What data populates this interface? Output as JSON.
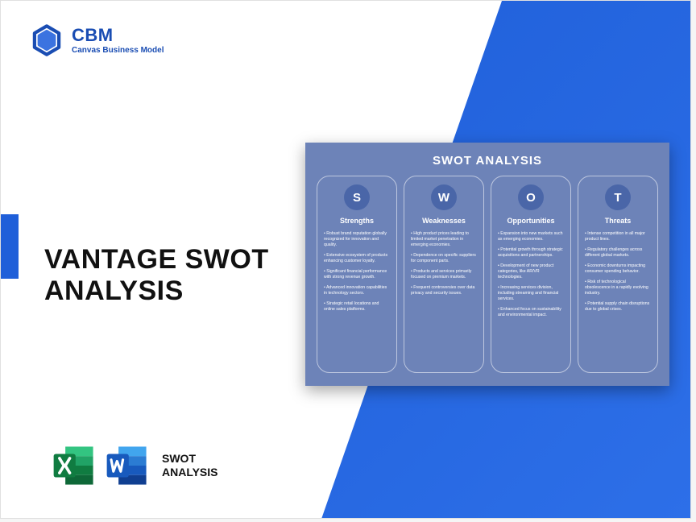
{
  "brand": {
    "title": "CBM",
    "subtitle": "Canvas Business Model",
    "color": "#1a4db3"
  },
  "main_title_line1": "VANTAGE SWOT",
  "main_title_line2": "ANALYSIS",
  "formats": {
    "label_line1": "SWOT",
    "label_line2": "ANALYSIS",
    "excel_colors": {
      "dark": "#107c41",
      "mid": "#21a366",
      "light": "#33c481"
    },
    "word_colors": {
      "dark": "#103f91",
      "mid": "#2b7cd3",
      "light": "#41a5ee"
    }
  },
  "diagonal_color": "#2460de",
  "accent_bar_color": "#1f5fd9",
  "swot": {
    "card_bg": "#6d83b8",
    "circle_bg": "#4a66a8",
    "title": "SWOT ANALYSIS",
    "columns": [
      {
        "letter": "S",
        "heading": "Strengths",
        "items": [
          "Robust brand reputation globally recognized for innovation and quality.",
          "Extensive ecosystem of products enhancing customer loyalty.",
          "Significant financial performance with strong revenue growth.",
          "Advanced innovation capabilities in technology sectors.",
          "Strategic retail locations and online sales platforms."
        ]
      },
      {
        "letter": "W",
        "heading": "Weaknesses",
        "items": [
          "High product prices leading to limited market penetration in emerging economies.",
          "Dependence on specific suppliers for component parts.",
          "Products and services primarily focused on premium markets.",
          "Frequent controversies over data privacy and security issues."
        ]
      },
      {
        "letter": "O",
        "heading": "Opportunities",
        "items": [
          "Expansion into new markets such as emerging economies.",
          "Potential growth through strategic acquisitions and partnerships.",
          "Development of new product categories, like AR/VR technologies.",
          "Increasing services division, including streaming and financial services.",
          "Enhanced focus on sustainability and environmental impact."
        ]
      },
      {
        "letter": "T",
        "heading": "Threats",
        "items": [
          "Intense competition in all major product lines.",
          "Regulatory challenges across different global markets.",
          "Economic downturns impacting consumer spending behavior.",
          "Risk of technological obsolescence in a rapidly evolving industry.",
          "Potential supply chain disruptions due to global crises."
        ]
      }
    ]
  }
}
